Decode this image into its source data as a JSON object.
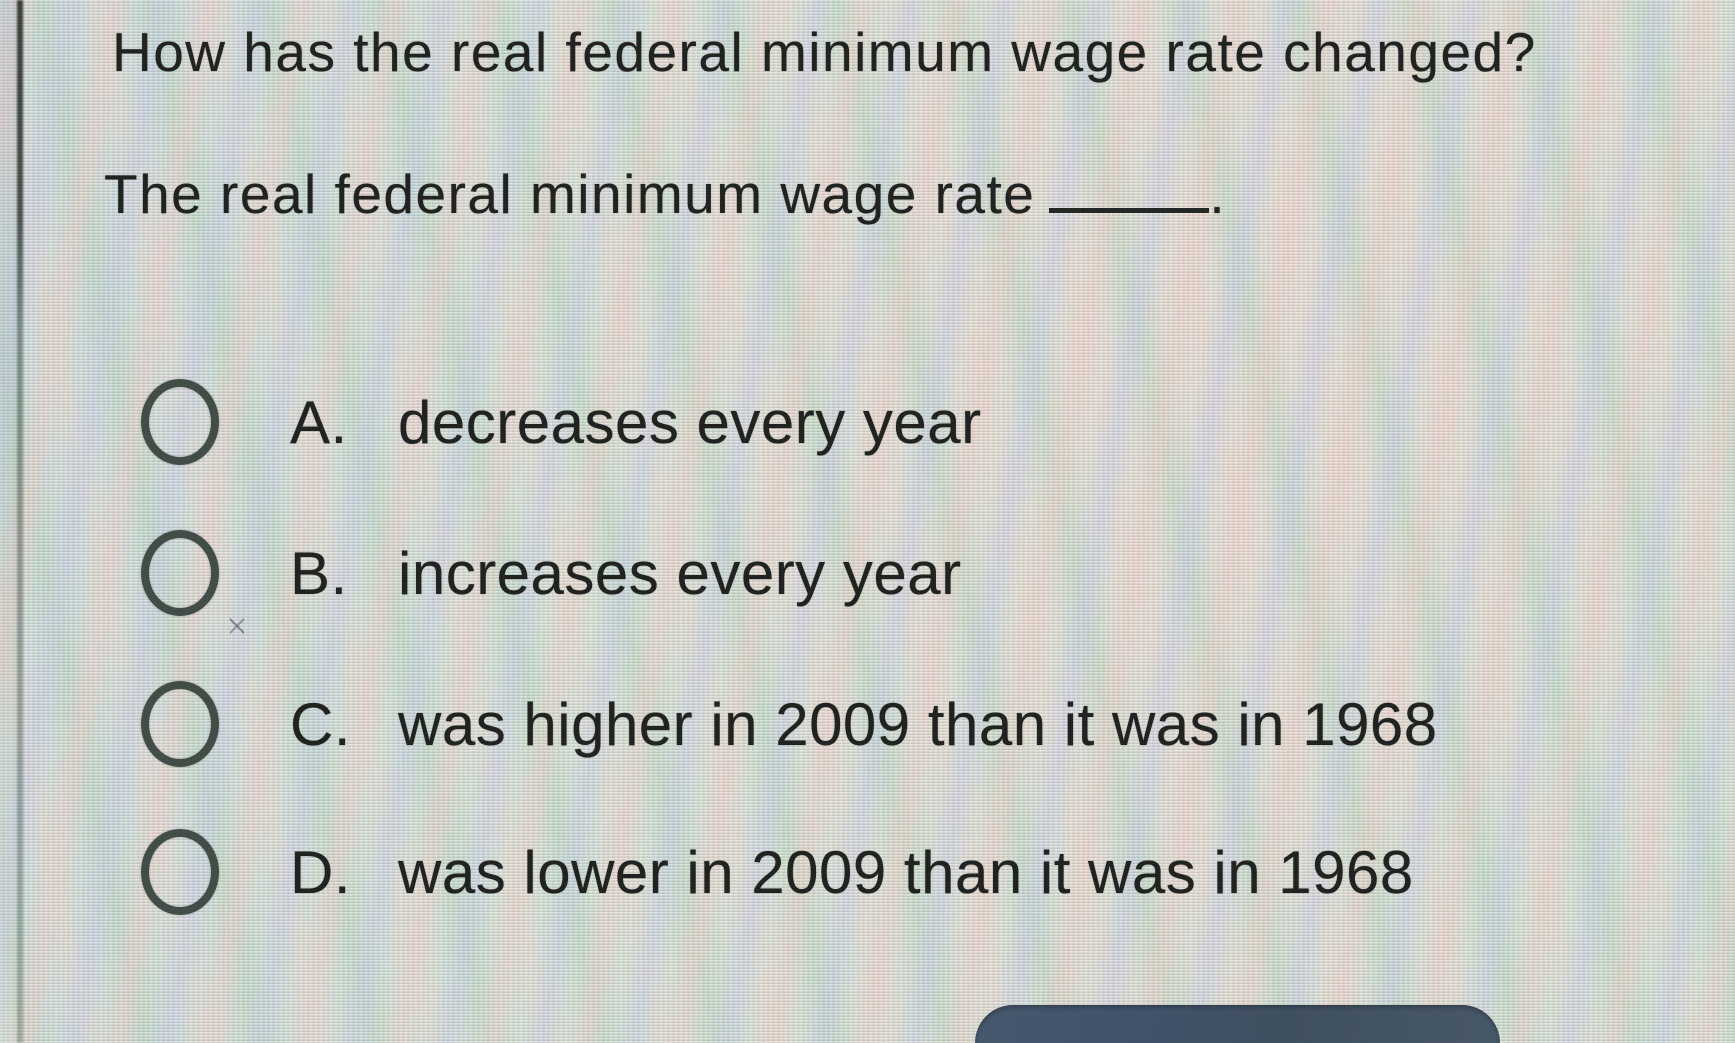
{
  "question": {
    "title": "How has the real federal minimum wage rate changed?",
    "stem_prefix": "The real federal minimum wage rate",
    "stem_blank": "______",
    "stem_suffix": "."
  },
  "options": [
    {
      "letter": "A.",
      "text": "decreases every year",
      "selected": false
    },
    {
      "letter": "B.",
      "text": "increases every year",
      "selected": false
    },
    {
      "letter": "C.",
      "text": "was higher in 2009 than it was in 1968",
      "selected": false
    },
    {
      "letter": "D.",
      "text": "was lower in 2009 than it was in 1968",
      "selected": false
    }
  ],
  "colors": {
    "text": "#20231f",
    "radio_outline": "#434d47",
    "screen_base": "#d4e0d5",
    "moire_pink": "#f0cdc6",
    "moire_lavender": "#c4cae6",
    "moire_green": "#b4d4bd",
    "blank_underline": "#242824",
    "bottom_button": "#45586a",
    "left_edge_shadow": "#1c2a24"
  }
}
